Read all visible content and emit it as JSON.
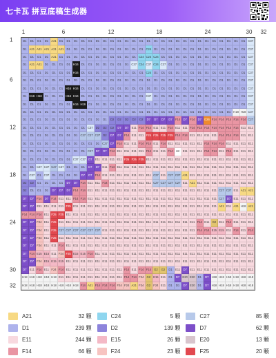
{
  "app": {
    "title": "七卡瓦 拼豆底稿生成器"
  },
  "rulers": {
    "cols": [
      "1",
      "6",
      "12",
      "18",
      "24",
      "30",
      "32"
    ],
    "rows": [
      "1",
      "6",
      "12",
      "18",
      "24",
      "30",
      "32"
    ]
  },
  "palette": {
    "A21": "#f7d983",
    "C24": "#8fd6ef",
    "C27": "#b7c9ea",
    "C37": "#dbe9fa",
    "D1": "#aeb3ec",
    "D2": "#8d84dc",
    "D7": "#7d4fc9",
    "E11": "#f8d9df",
    "E15": "#f4b9c6",
    "E20": "#d8c5cd",
    "F14": "#e995a3",
    "F24": "#f7c4c1",
    "F25": "#e2484f",
    "H2": "#ffffff",
    "H16": "#1b1b1b",
    "H18": "#f4f4f4",
    "G2": "#e2c46f",
    "G26": "#ef8a2d"
  },
  "dark_codes": [
    "H16",
    "D7",
    "F25",
    "G26"
  ],
  "grid": [
    [
      "D1",
      "D1",
      "D1",
      "D1",
      "A21",
      "D1",
      "D1",
      "D1",
      "D1",
      "D1",
      "D1",
      "D1",
      "D1",
      "D1",
      "D1",
      "D1",
      "D1",
      "D1",
      "D1",
      "D1",
      "D1",
      "D1",
      "D1",
      "D1",
      "D1",
      "D1",
      "D1",
      "D1",
      "D1",
      "D1",
      "D1",
      "C37"
    ],
    [
      "D1",
      "A21",
      "A21",
      "A21",
      "A21",
      "A21",
      "D1",
      "D1",
      "D1",
      "D1",
      "D1",
      "D1",
      "D1",
      "D1",
      "D1",
      "D1",
      "D1",
      "C24",
      "D1",
      "D1",
      "D1",
      "D1",
      "D1",
      "D1",
      "D1",
      "D1",
      "D1",
      "D1",
      "D1",
      "D1",
      "D1",
      "C37"
    ],
    [
      "D1",
      "D1",
      "D1",
      "D1",
      "A21",
      "D1",
      "D1",
      "D1",
      "D1",
      "D1",
      "D1",
      "D1",
      "D1",
      "D1",
      "D1",
      "D1",
      "C24",
      "C24",
      "C24",
      "D1",
      "D1",
      "D1",
      "D1",
      "D1",
      "D1",
      "D1",
      "D1",
      "D1",
      "D1",
      "D1",
      "D1",
      "C37"
    ],
    [
      "D1",
      "A21",
      "A21",
      "D1",
      "D1",
      "D1",
      "D1",
      "H16",
      "D1",
      "D1",
      "D1",
      "D1",
      "D1",
      "D1",
      "D1",
      "C37",
      "C24",
      "C37",
      "C24",
      "C37",
      "D1",
      "D1",
      "D1",
      "D1",
      "D1",
      "D1",
      "D1",
      "D1",
      "D1",
      "D1",
      "D1",
      "C37"
    ],
    [
      "D1",
      "D1",
      "D1",
      "D1",
      "D1",
      "D1",
      "D1",
      "H16",
      "D1",
      "D1",
      "D1",
      "D1",
      "D1",
      "D1",
      "D1",
      "D1",
      "D1",
      "C24",
      "D1",
      "D1",
      "D1",
      "D1",
      "D1",
      "D1",
      "D1",
      "D1",
      "D1",
      "D1",
      "D1",
      "D1",
      "D1",
      "C37"
    ],
    [
      "D1",
      "D1",
      "D1",
      "D1",
      "D1",
      "D1",
      "D1",
      "D1",
      "D1",
      "D1",
      "D1",
      "D1",
      "D1",
      "D1",
      "D1",
      "D1",
      "D1",
      "D1",
      "D1",
      "D1",
      "D1",
      "D1",
      "D1",
      "D1",
      "D1",
      "D1",
      "D1",
      "D1",
      "D1",
      "D1",
      "D1",
      "C37"
    ],
    [
      "D1",
      "D1",
      "D1",
      "D1",
      "D1",
      "D1",
      "H16",
      "H16",
      "D1",
      "D1",
      "D1",
      "D1",
      "D1",
      "D1",
      "D1",
      "D1",
      "D1",
      "D1",
      "D1",
      "D1",
      "D1",
      "D1",
      "D1",
      "D1",
      "D1",
      "D1",
      "D1",
      "D1",
      "D1",
      "D1",
      "D1",
      "C37"
    ],
    [
      "D1",
      "H16",
      "H16",
      "D1",
      "D1",
      "D1",
      "H16",
      "H16",
      "D1",
      "D1",
      "D1",
      "D1",
      "D1",
      "D1",
      "D1",
      "D1",
      "D1",
      "C37",
      "D1",
      "D1",
      "D1",
      "D1",
      "D1",
      "D1",
      "D1",
      "D1",
      "D1",
      "D1",
      "D1",
      "D1",
      "D1",
      "C37"
    ],
    [
      "D1",
      "D1",
      "D1",
      "D1",
      "D1",
      "D1",
      "D1",
      "H16",
      "H16",
      "D1",
      "D1",
      "D1",
      "D1",
      "D1",
      "D1",
      "D1",
      "D1",
      "D1",
      "D1",
      "D1",
      "D1",
      "D1",
      "D1",
      "D1",
      "D1",
      "D1",
      "D1",
      "D1",
      "D1",
      "D1",
      "D1",
      "C37"
    ],
    [
      "D1",
      "D1",
      "D1",
      "D1",
      "D1",
      "D1",
      "D1",
      "D1",
      "D1",
      "D1",
      "D1",
      "D1",
      "D1",
      "D1",
      "D1",
      "D1",
      "D1",
      "D1",
      "D1",
      "D1",
      "D1",
      "D1",
      "D1",
      "D1",
      "D1",
      "D1",
      "D1",
      "D1",
      "D1",
      "H18",
      "H18",
      "C37"
    ],
    [
      "D1",
      "D1",
      "D1",
      "D1",
      "D1",
      "D1",
      "D1",
      "D1",
      "D1",
      "D1",
      "D1",
      "D1",
      "D2",
      "D2",
      "D2",
      "D2",
      "D2",
      "D7",
      "D7",
      "D7",
      "D7",
      "F14",
      "D7",
      "F14",
      "D7",
      "G26",
      "F14",
      "F14",
      "F14",
      "F14",
      "F14",
      "C27"
    ],
    [
      "D1",
      "D1",
      "D1",
      "D1",
      "D1",
      "D1",
      "D1",
      "D1",
      "D1",
      "C37",
      "D2",
      "D2",
      "D2",
      "D7",
      "D7",
      "E11",
      "F14",
      "F14",
      "E11",
      "E11",
      "F14",
      "E11",
      "E11",
      "F14",
      "F14",
      "F14",
      "F14",
      "F14",
      "F14",
      "F14",
      "E11",
      "E11"
    ],
    [
      "D1",
      "D1",
      "D1",
      "D1",
      "D1",
      "D1",
      "D1",
      "D1",
      "C27",
      "C27",
      "C27",
      "D2",
      "D7",
      "D7",
      "F14",
      "E11",
      "E11",
      "F25",
      "F25",
      "F25",
      "F25",
      "F14",
      "F14",
      "E11",
      "E11",
      "E11",
      "E11",
      "F14",
      "F14",
      "F14",
      "E11",
      "E11"
    ],
    [
      "D1",
      "D1",
      "D1",
      "D1",
      "D1",
      "D1",
      "D1",
      "D1",
      "D1",
      "D1",
      "D1",
      "C27",
      "D7",
      "F14",
      "E11",
      "E11",
      "F14",
      "F14",
      "E11",
      "F14",
      "E11",
      "E11",
      "E11",
      "E11",
      "E11",
      "F14",
      "F14",
      "F14",
      "E11",
      "E11",
      "E11",
      "E11"
    ],
    [
      "D1",
      "D1",
      "D1",
      "D1",
      "D1",
      "D1",
      "D1",
      "D1",
      "D1",
      "C27",
      "D7",
      "D7",
      "F14",
      "E11",
      "E11",
      "E11",
      "E11",
      "F14",
      "E11",
      "E11",
      "F14",
      "H2",
      "E11",
      "E11",
      "E11",
      "F14",
      "F14",
      "E11",
      "F14",
      "E11",
      "E11",
      "E11"
    ],
    [
      "D1",
      "D1",
      "D1",
      "D1",
      "D1",
      "D1",
      "D1",
      "C37",
      "C37",
      "D7",
      "E11",
      "E11",
      "E11",
      "E11",
      "F25",
      "F25",
      "F25",
      "E11",
      "E11",
      "E11",
      "E11",
      "E11",
      "E11",
      "E11",
      "E11",
      "E11",
      "E11",
      "E11",
      "E11",
      "E11",
      "E11",
      "E11"
    ],
    [
      "D1",
      "D1",
      "C37",
      "C37",
      "C27",
      "C37",
      "D1",
      "D1",
      "D1",
      "D7",
      "D7",
      "E11",
      "F14",
      "E11",
      "E11",
      "E11",
      "E11",
      "E11",
      "E11",
      "E11",
      "E11",
      "E11",
      "E11",
      "E11",
      "E11",
      "E11",
      "E11",
      "E11",
      "E11",
      "E11",
      "E11",
      "E11"
    ],
    [
      "D1",
      "C37",
      "D1",
      "C37",
      "D1",
      "D1",
      "D1",
      "D1",
      "D7",
      "D7",
      "F14",
      "E11",
      "E11",
      "E11",
      "E11",
      "E11",
      "E11",
      "E11",
      "C27",
      "E11",
      "C27",
      "C27",
      "A21",
      "E11",
      "E11",
      "E11",
      "E11",
      "E11",
      "E11",
      "E11",
      "E11",
      "E11"
    ],
    [
      "D2",
      "D2",
      "D1",
      "D1",
      "D1",
      "D1",
      "D7",
      "D7",
      "F14",
      "E11",
      "E11",
      "F14",
      "E11",
      "E11",
      "E11",
      "E11",
      "E11",
      "E11",
      "C27",
      "C27",
      "C27",
      "C27",
      "E11",
      "A21",
      "E11",
      "E11",
      "E11",
      "E11",
      "E11",
      "E11",
      "E11",
      "E11"
    ],
    [
      "D2",
      "D1",
      "D1",
      "D1",
      "D7",
      "D7",
      "D7",
      "F14",
      "F14",
      "E11",
      "E11",
      "E11",
      "E11",
      "E11",
      "E11",
      "E11",
      "E11",
      "E11",
      "E11",
      "E11",
      "E11",
      "E11",
      "E11",
      "E11",
      "E11",
      "E11",
      "E11",
      "C27",
      "C27",
      "E11",
      "A21",
      "A21"
    ],
    [
      "D7",
      "D7",
      "F14",
      "D7",
      "F14",
      "E11",
      "E11",
      "F14",
      "F14",
      "E11",
      "E11",
      "E11",
      "E11",
      "E11",
      "E11",
      "E11",
      "E11",
      "E11",
      "E11",
      "E11",
      "E11",
      "E11",
      "E11",
      "E11",
      "E11",
      "E11",
      "E11",
      "C27",
      "D7",
      "E11",
      "E11",
      "E11"
    ],
    [
      "D7",
      "D7",
      "E11",
      "E11",
      "E11",
      "E11",
      "F25",
      "E11",
      "E11",
      "E11",
      "E11",
      "E11",
      "E11",
      "E11",
      "E11",
      "E11",
      "E11",
      "E11",
      "E11",
      "E11",
      "E11",
      "E11",
      "E11",
      "E11",
      "E11",
      "E11",
      "E11",
      "A21",
      "E11",
      "A21",
      "H18",
      "A21"
    ],
    [
      "F14",
      "F14",
      "F14",
      "E11",
      "F25",
      "F25",
      "E11",
      "E11",
      "E11",
      "E11",
      "E11",
      "E11",
      "E11",
      "E11",
      "E11",
      "E11",
      "E11",
      "E11",
      "E11",
      "E11",
      "E11",
      "E11",
      "E11",
      "E11",
      "E11",
      "E11",
      "E11",
      "E11",
      "E11",
      "E11",
      "E11",
      "E11"
    ],
    [
      "D7",
      "D7",
      "F24",
      "E11",
      "F25",
      "E11",
      "E11",
      "E11",
      "E11",
      "E11",
      "E11",
      "E11",
      "E11",
      "E11",
      "E11",
      "E11",
      "E11",
      "E11",
      "E11",
      "E11",
      "E11",
      "E11",
      "E11",
      "E11",
      "F14",
      "E11",
      "G2",
      "E11",
      "F14",
      "E11",
      "E11",
      "E11"
    ],
    [
      "D7",
      "D7",
      "F24",
      "E11",
      "F25",
      "C27",
      "C27",
      "C27",
      "C27",
      "C27",
      "C27",
      "E11",
      "E11",
      "E11",
      "E11",
      "E11",
      "E11",
      "E11",
      "E11",
      "E11",
      "E11",
      "E11",
      "E11",
      "E11",
      "F14",
      "F14",
      "E15",
      "E15",
      "E11",
      "F14",
      "E11",
      "F14"
    ],
    [
      "D7",
      "D7",
      "F24",
      "E11",
      "F25",
      "E11",
      "E11",
      "E11",
      "E11",
      "E11",
      "E11",
      "E11",
      "E11",
      "E11",
      "E11",
      "E11",
      "E11",
      "E11",
      "E11",
      "E11",
      "E11",
      "E11",
      "E11",
      "E11",
      "E11",
      "E11",
      "E11",
      "E11",
      "E11",
      "E11",
      "E11",
      "E11"
    ],
    [
      "D7",
      "D7",
      "F24",
      "E11",
      "E11",
      "F14",
      "E11",
      "E11",
      "E11",
      "E11",
      "E11",
      "E11",
      "E11",
      "E11",
      "E11",
      "E11",
      "E11",
      "E11",
      "E11",
      "E11",
      "E11",
      "E11",
      "E11",
      "E11",
      "E11",
      "E11",
      "E11",
      "E11",
      "E11",
      "E11",
      "E11",
      "E11"
    ],
    [
      "D7",
      "F14",
      "E15",
      "E15",
      "E11",
      "F24",
      "F25",
      "E15",
      "E15",
      "F14",
      "E11",
      "E11",
      "E11",
      "E11",
      "E11",
      "E11",
      "E11",
      "E11",
      "E11",
      "E11",
      "E11",
      "E11",
      "E11",
      "E11",
      "E11",
      "E11",
      "E11",
      "E11",
      "E11",
      "E11",
      "E11",
      "E11"
    ],
    [
      "D7",
      "D7",
      "F24",
      "E15",
      "E15",
      "E15",
      "E11",
      "E11",
      "E11",
      "E11",
      "E11",
      "E11",
      "E11",
      "E11",
      "E11",
      "E11",
      "E11",
      "E11",
      "E11",
      "E11",
      "E11",
      "E11",
      "E11",
      "E11",
      "E11",
      "E11",
      "E11",
      "E11",
      "E11",
      "E11",
      "E11",
      "E11"
    ],
    [
      "D7",
      "E11",
      "F14",
      "E11",
      "F24",
      "F14",
      "E11",
      "E11",
      "E11",
      "E11",
      "E11",
      "E11",
      "E11",
      "E11",
      "F14",
      "E11",
      "F14",
      "F14",
      "G2",
      "G2",
      "D1",
      "E11",
      "D7",
      "E11",
      "E11",
      "E11",
      "E11",
      "E11",
      "E11",
      "E11",
      "E11",
      "E11"
    ],
    [
      "H18",
      "H18",
      "H18",
      "H18",
      "H18",
      "E11",
      "E11",
      "E11",
      "E11",
      "E11",
      "E11",
      "E11",
      "E11",
      "E11",
      "F14",
      "F14",
      "F24",
      "G2",
      "E15",
      "E11",
      "D1",
      "D7",
      "E20",
      "E20",
      "D1",
      "D7",
      "H18",
      "H18",
      "H18",
      "H18",
      "H18",
      "H18"
    ],
    [
      "H18",
      "H18",
      "H18",
      "H18",
      "H18",
      "H18",
      "H18",
      "H18",
      "F14",
      "A21",
      "F14",
      "F14",
      "F14",
      "F24",
      "F24",
      "A21",
      "F24",
      "G2",
      "F24",
      "E11",
      "D1",
      "D1",
      "D7",
      "E20",
      "D1",
      "D7",
      "H18",
      "H18",
      "H18",
      "H18",
      "H18",
      "H18"
    ]
  ],
  "legend": [
    {
      "code": "A21",
      "count": "32 颗",
      "color": "#f7d983"
    },
    {
      "code": "C24",
      "count": "5 颗",
      "color": "#8fd6ef"
    },
    {
      "code": "C27",
      "count": "85 颗",
      "color": "#b7c9ea"
    },
    {
      "code": "D1",
      "count": "239 颗",
      "color": "#aeb3ec"
    },
    {
      "code": "D2",
      "count": "139 颗",
      "color": "#8d84dc"
    },
    {
      "code": "D7",
      "count": "62 颗",
      "color": "#7d4fc9"
    },
    {
      "code": "E11",
      "count": "244 颗",
      "color": "#f8d9df"
    },
    {
      "code": "E15",
      "count": "26 颗",
      "color": "#f4b9c6"
    },
    {
      "code": "E20",
      "count": "13 颗",
      "color": "#d8c5cd"
    },
    {
      "code": "F14",
      "count": "66 颗",
      "color": "#e995a3"
    },
    {
      "code": "F24",
      "count": "23 颗",
      "color": "#f7c4c1"
    },
    {
      "code": "F25",
      "count": "20 颗",
      "color": "#e2484f"
    }
  ]
}
